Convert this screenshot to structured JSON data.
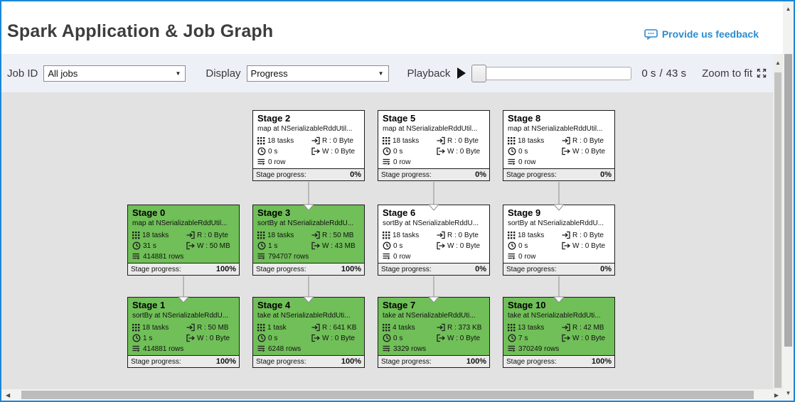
{
  "colors": {
    "window_border": "#1b86d8",
    "toolbar_background": "#eef0f8",
    "graph_background": "#e2e2e2",
    "stage_done_green": "#70bf58",
    "stage_pending_white": "#ffffff",
    "feedback_blue": "#2b8bd0"
  },
  "header": {
    "title": "Spark Application & Job Graph",
    "feedback_link": "Provide us feedback",
    "feedback_icon": "speech-bubble-icon"
  },
  "toolbar": {
    "job_id_label": "Job ID",
    "job_id_selected": "All jobs",
    "display_label": "Display",
    "display_selected": "Progress",
    "playback_label": "Playback",
    "play_icon": "play-icon",
    "elapsed": "0 s",
    "separator": "/",
    "total": "43 s",
    "zoom_to_fit_label": "Zoom to fit",
    "zoom_to_fit_icon": "zoom-to-fit-icon"
  },
  "graph": {
    "progress_label": "Stage progress:",
    "stat_icons": {
      "tasks": "grid-icon",
      "read": "input-icon",
      "time": "clock-icon",
      "write": "output-icon",
      "rows": "rows-icon"
    },
    "stages": [
      {
        "id": "0",
        "title": "Stage 0",
        "desc": "map at NSerializableRddUtil...",
        "tasks": "18 tasks",
        "read": "R : 0 Byte",
        "time": "31 s",
        "write": "W : 50 MB",
        "rows": "414881 rows",
        "progress": "100%",
        "done": true,
        "col": 0,
        "row": 1
      },
      {
        "id": "1",
        "title": "Stage 1",
        "desc": "sortBy at NSerializableRddU...",
        "tasks": "18 tasks",
        "read": "R : 50 MB",
        "time": "1 s",
        "write": "W : 0 Byte",
        "rows": "414881 rows",
        "progress": "100%",
        "done": true,
        "col": 0,
        "row": 2
      },
      {
        "id": "2",
        "title": "Stage 2",
        "desc": "map at NSerializableRddUtil...",
        "tasks": "18 tasks",
        "read": "R : 0 Byte",
        "time": "0 s",
        "write": "W : 0 Byte",
        "rows": "0 row",
        "progress": "0%",
        "done": false,
        "col": 1,
        "row": 0
      },
      {
        "id": "3",
        "title": "Stage 3",
        "desc": "sortBy at NSerializableRddU...",
        "tasks": "18 tasks",
        "read": "R : 50 MB",
        "time": "1 s",
        "write": "W : 43 MB",
        "rows": "794707 rows",
        "progress": "100%",
        "done": true,
        "col": 1,
        "row": 1
      },
      {
        "id": "4",
        "title": "Stage 4",
        "desc": "take at NSerializableRddUti...",
        "tasks": "1 task",
        "read": "R : 641 KB",
        "time": "0 s",
        "write": "W : 0 Byte",
        "rows": "6248 rows",
        "progress": "100%",
        "done": true,
        "col": 1,
        "row": 2
      },
      {
        "id": "5",
        "title": "Stage 5",
        "desc": "map at NSerializableRddUtil...",
        "tasks": "18 tasks",
        "read": "R : 0 Byte",
        "time": "0 s",
        "write": "W : 0 Byte",
        "rows": "0 row",
        "progress": "0%",
        "done": false,
        "col": 2,
        "row": 0
      },
      {
        "id": "6",
        "title": "Stage 6",
        "desc": "sortBy at NSerializableRddU...",
        "tasks": "18 tasks",
        "read": "R : 0 Byte",
        "time": "0 s",
        "write": "W : 0 Byte",
        "rows": "0 row",
        "progress": "0%",
        "done": false,
        "col": 2,
        "row": 1
      },
      {
        "id": "7",
        "title": "Stage 7",
        "desc": "take at NSerializableRddUti...",
        "tasks": "4 tasks",
        "read": "R : 373 KB",
        "time": "0 s",
        "write": "W : 0 Byte",
        "rows": "3329 rows",
        "progress": "100%",
        "done": true,
        "col": 2,
        "row": 2
      },
      {
        "id": "8",
        "title": "Stage 8",
        "desc": "map at NSerializableRddUtil...",
        "tasks": "18 tasks",
        "read": "R : 0 Byte",
        "time": "0 s",
        "write": "W : 0 Byte",
        "rows": "0 row",
        "progress": "0%",
        "done": false,
        "col": 3,
        "row": 0
      },
      {
        "id": "9",
        "title": "Stage 9",
        "desc": "sortBy at NSerializableRddU...",
        "tasks": "18 tasks",
        "read": "R : 0 Byte",
        "time": "0 s",
        "write": "W : 0 Byte",
        "rows": "0 row",
        "progress": "0%",
        "done": false,
        "col": 3,
        "row": 1
      },
      {
        "id": "10",
        "title": "Stage 10",
        "desc": "take at NSerializableRddUti...",
        "tasks": "13 tasks",
        "read": "R : 42 MB",
        "time": "7 s",
        "write": "W : 0 Byte",
        "rows": "370249 rows",
        "progress": "100%",
        "done": true,
        "col": 3,
        "row": 2
      }
    ],
    "edges": [
      [
        "2",
        "3"
      ],
      [
        "5",
        "6"
      ],
      [
        "8",
        "9"
      ],
      [
        "0",
        "1"
      ],
      [
        "3",
        "4"
      ],
      [
        "6",
        "7"
      ],
      [
        "9",
        "10"
      ]
    ]
  },
  "scrollbars": {
    "up_glyph": "▲",
    "down_glyph": "▼",
    "left_glyph": "◀",
    "right_glyph": "▶"
  }
}
